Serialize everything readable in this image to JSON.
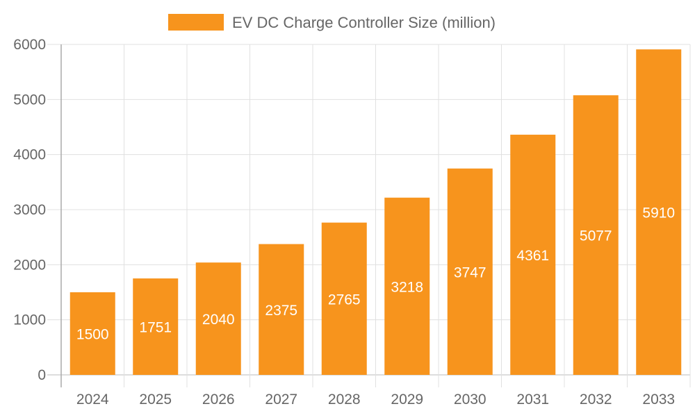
{
  "chart_data": {
    "type": "bar",
    "title": "",
    "xlabel": "",
    "ylabel": "",
    "categories": [
      "2024",
      "2025",
      "2026",
      "2027",
      "2028",
      "2029",
      "2030",
      "2031",
      "2032",
      "2033"
    ],
    "series": [
      {
        "name": "EV DC Charge Controller Size (million)",
        "values": [
          1500,
          1751,
          2040,
          2375,
          2765,
          3218,
          3747,
          4361,
          5077,
          5910
        ],
        "color": "#f7941d"
      }
    ],
    "ylim": [
      0,
      6000
    ],
    "yticks": [
      0,
      1000,
      2000,
      3000,
      4000,
      5000,
      6000
    ],
    "grid": true,
    "legend": "top-center",
    "data_labels": true
  }
}
